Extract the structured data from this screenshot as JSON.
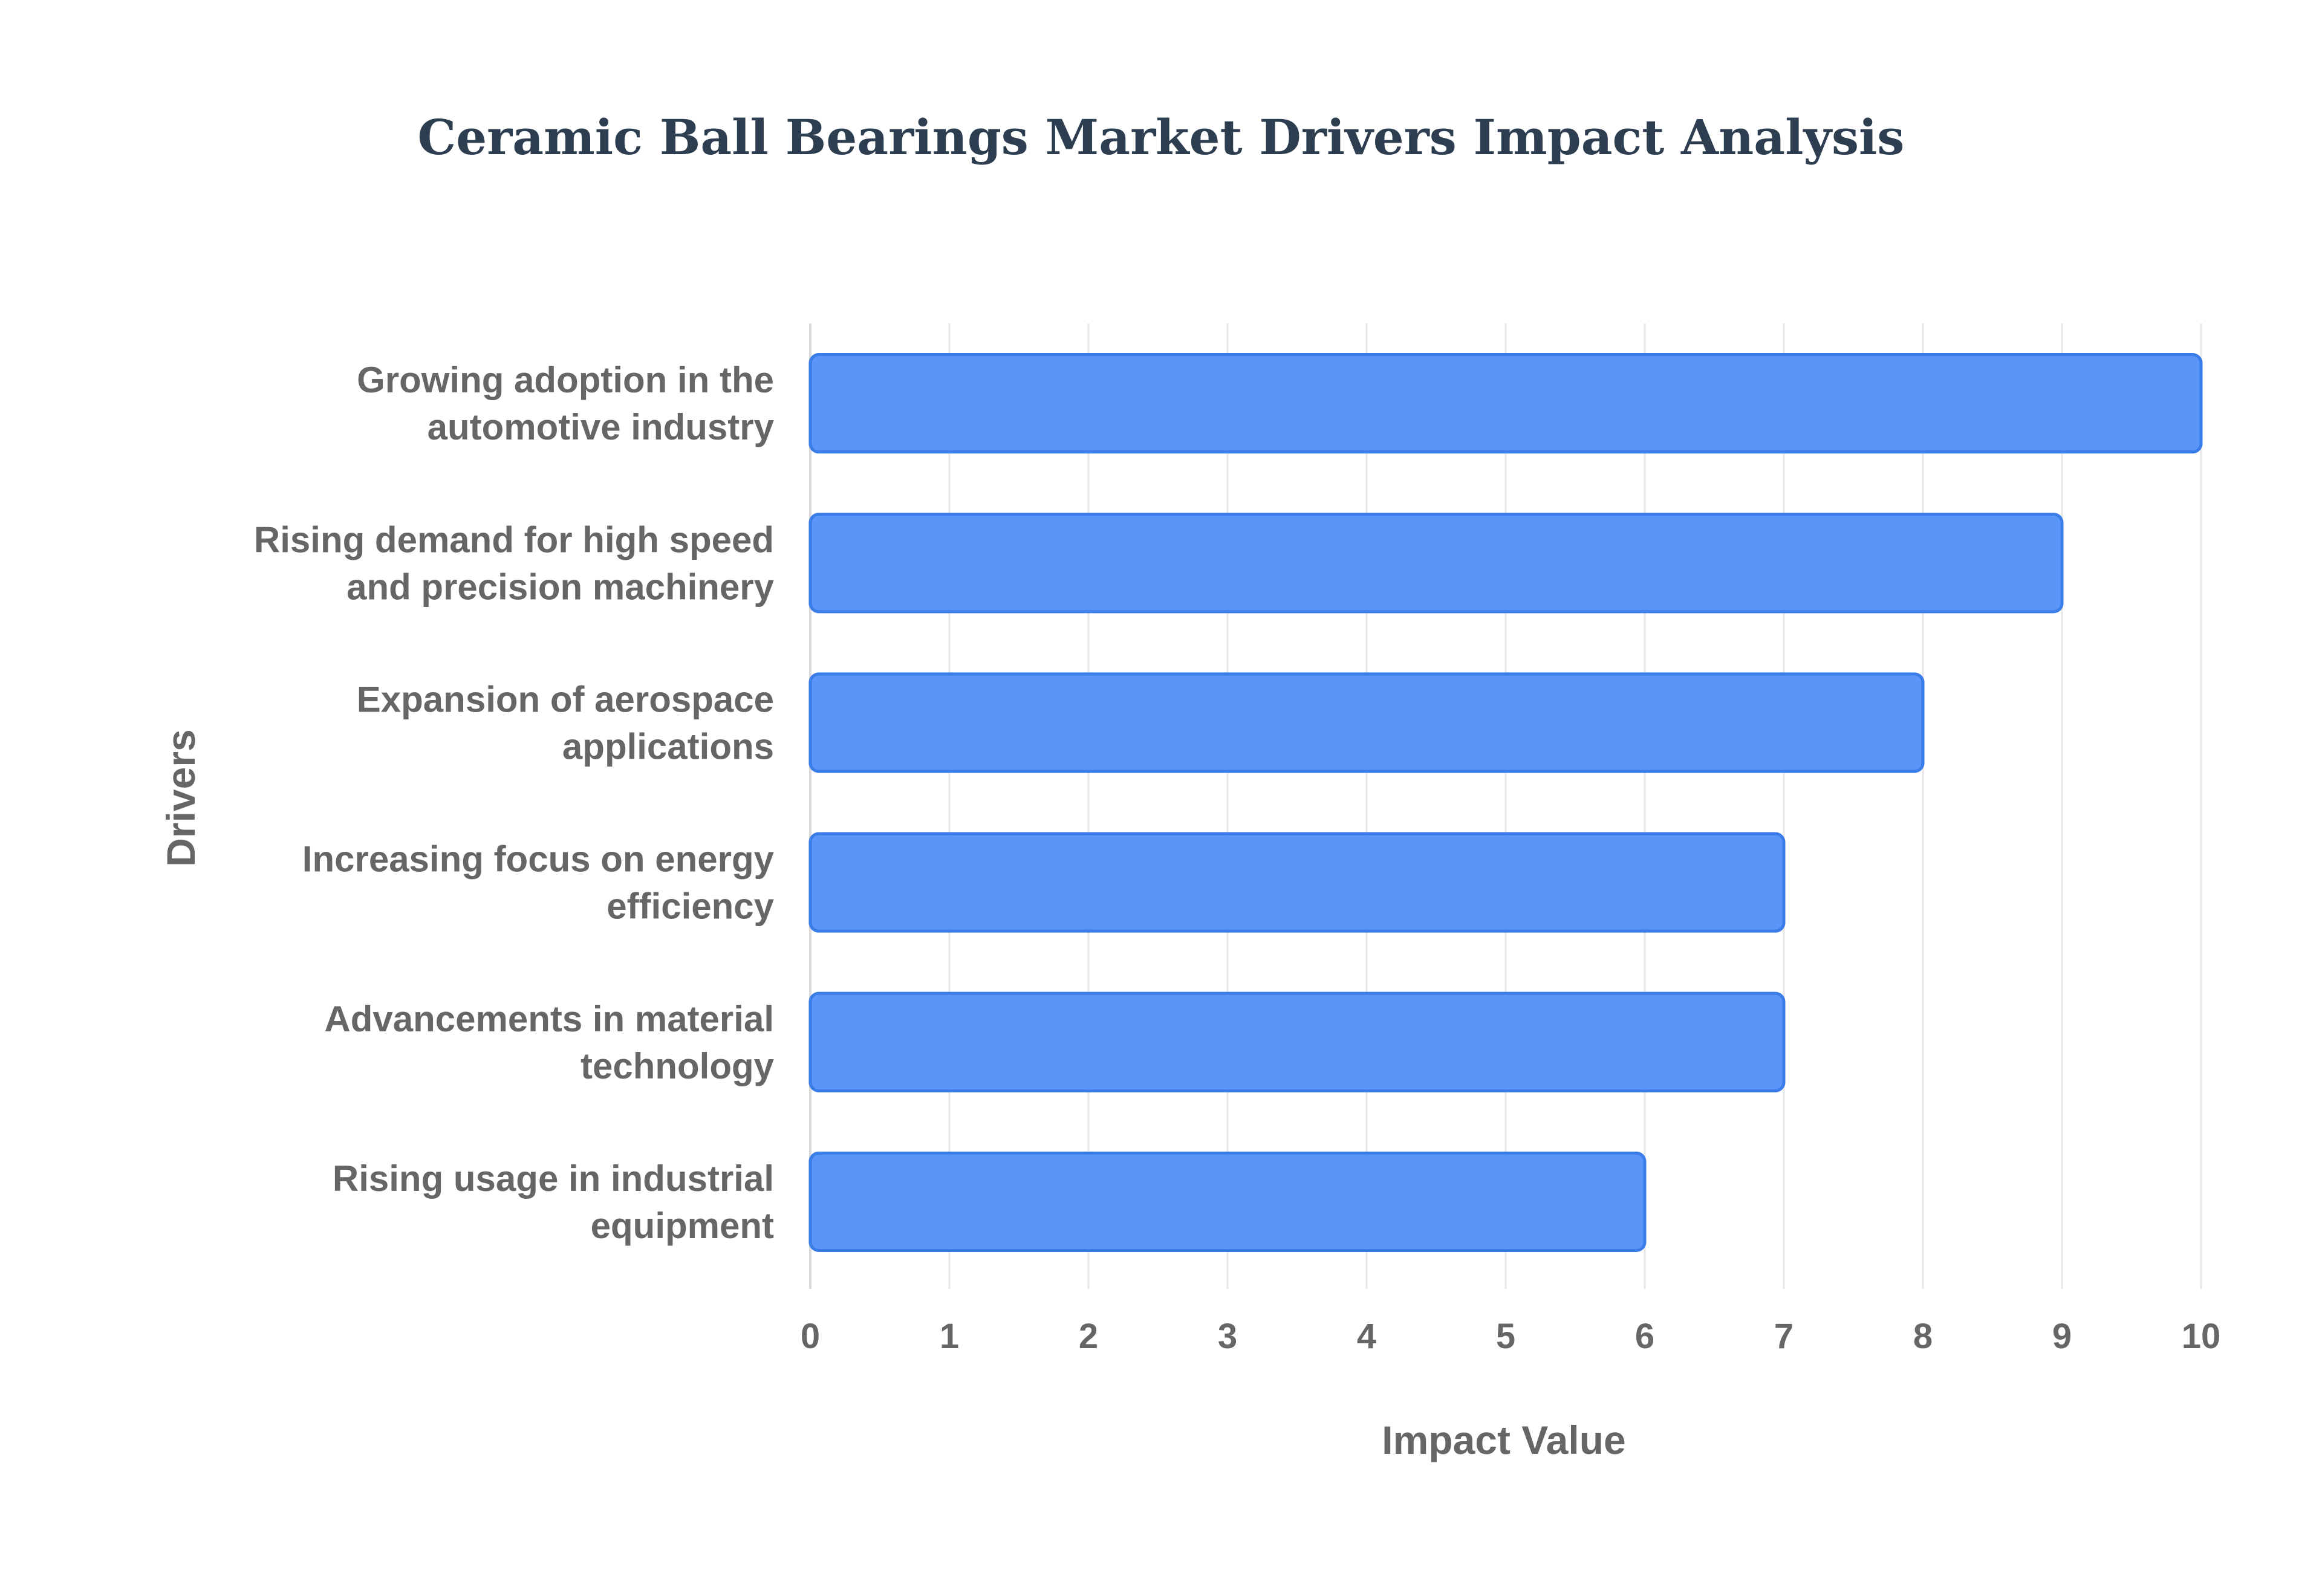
{
  "chart_data": {
    "type": "bar",
    "orientation": "horizontal",
    "title": "Ceramic Ball Bearings Market Drivers Impact Analysis",
    "xlabel": "Impact Value",
    "ylabel": "Drivers",
    "xlim": [
      0,
      10
    ],
    "ticks": [
      0,
      1,
      2,
      3,
      4,
      5,
      6,
      7,
      8,
      9,
      10
    ],
    "grid": true,
    "legend": "none",
    "categories": [
      [
        "Growing adoption in the",
        "automotive industry"
      ],
      [
        "Rising demand for high speed",
        "and precision machinery"
      ],
      [
        "Expansion of aerospace",
        "applications"
      ],
      [
        "Increasing focus on energy",
        "efficiency"
      ],
      [
        "Advancements in material",
        "technology"
      ],
      [
        "Rising usage in industrial",
        "equipment"
      ]
    ],
    "values": [
      10,
      9,
      8,
      7,
      7,
      6
    ],
    "colors": {
      "bar_fill": "#5b95f7",
      "bar_stroke": "#3b7de8",
      "title": "#2c3e50",
      "text": "#666666"
    }
  }
}
